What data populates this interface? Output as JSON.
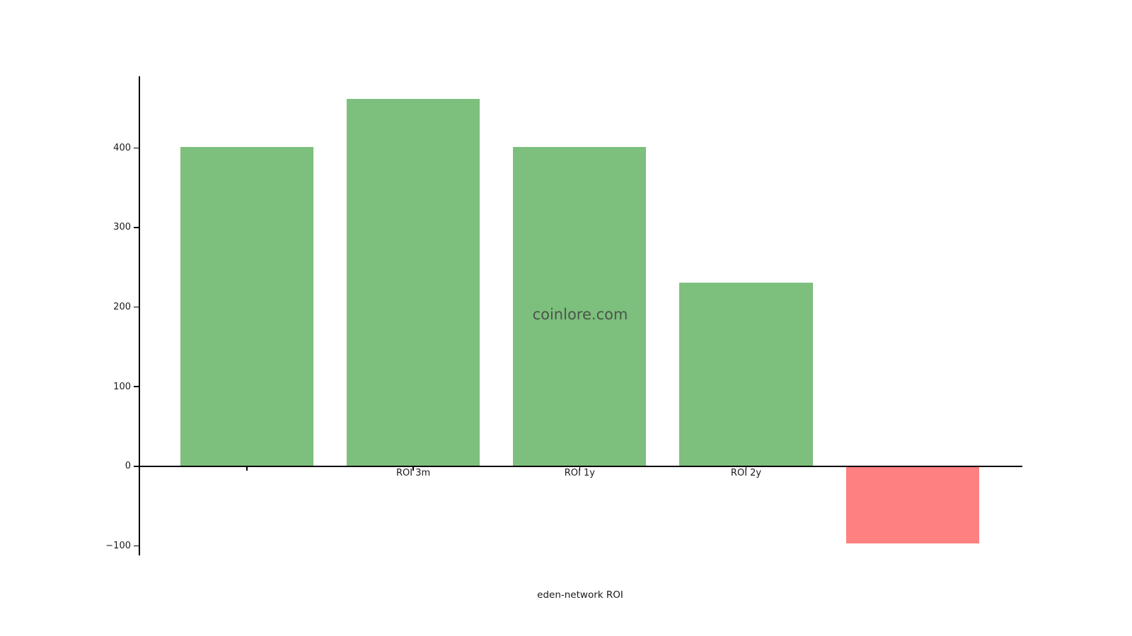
{
  "page": {
    "background_color": "#ffffff"
  },
  "watermark": {
    "text": "coinlore.com",
    "color": "#3f3f3f"
  },
  "chart_data": {
    "type": "bar",
    "title": "",
    "xlabel": "eden-network ROI",
    "ylabel": "",
    "categories": [
      "",
      "ROI 3m",
      "ROI 1y",
      "ROI 2y",
      ""
    ],
    "values": [
      401,
      462,
      401,
      231,
      -97
    ],
    "bar_colors": [
      "#7dbf7d",
      "#7dbf7d",
      "#7dbf7d",
      "#7dbf7d",
      "#ff8080"
    ],
    "positive_color": "#7dbf7d",
    "negative_color": "#ff8080",
    "y_ticks": [
      -100,
      0,
      100,
      200,
      300,
      400
    ],
    "y_tick_labels": [
      "−100",
      "0",
      "100",
      "200",
      "300",
      "400"
    ],
    "ylim": [
      -112,
      490
    ],
    "xlim": [
      -0.65,
      4.66
    ],
    "bar_width_fraction": 0.8,
    "grid": false,
    "legend": null,
    "axis_color": "#000000",
    "tick_label_color": "#1a1a1a"
  }
}
